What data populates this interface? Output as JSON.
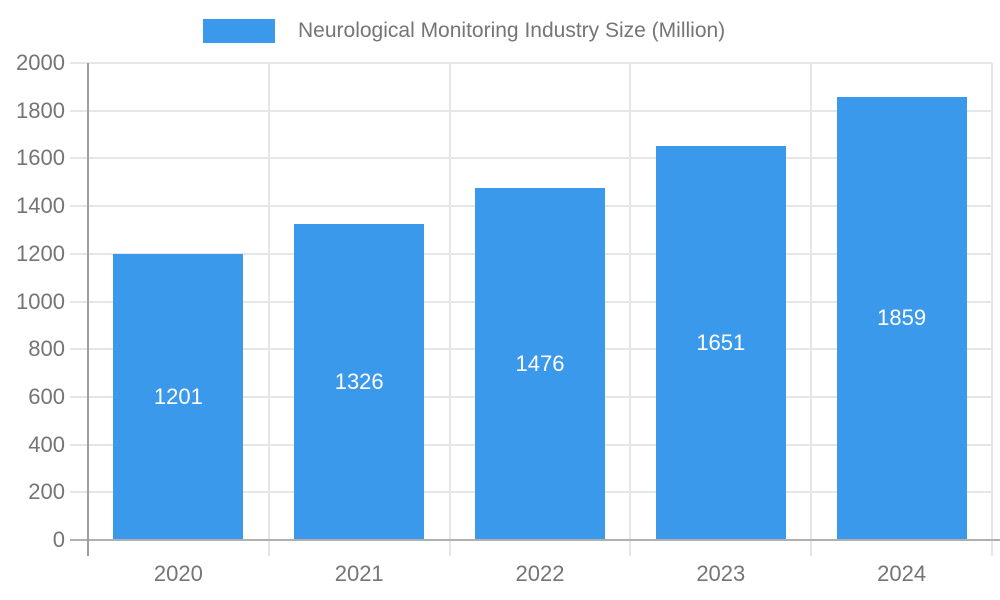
{
  "chart_data": {
    "type": "bar",
    "title": "Neurological Monitoring Industry Size (Million)",
    "categories": [
      "2020",
      "2021",
      "2022",
      "2023",
      "2024"
    ],
    "values": [
      1201,
      1326,
      1476,
      1651,
      1859
    ],
    "value_labels_on_bars": true,
    "xlabel": "",
    "ylabel": "",
    "ylim": [
      0,
      2000
    ],
    "ytick_step": 200,
    "y_tick_labels": [
      "0",
      "200",
      "400",
      "600",
      "800",
      "1000",
      "1200",
      "1400",
      "1600",
      "1800",
      "2000"
    ],
    "grid": true,
    "legend_position": "top-center",
    "colors": {
      "bar": "#3B99EC",
      "axis_text": "#757575",
      "value_text": "#FFFFFF",
      "gridline": "#E6E6E6",
      "axis_line": "#9E9E9E",
      "baseline": "#B0B0B0",
      "background": "#FFFFFF"
    }
  }
}
